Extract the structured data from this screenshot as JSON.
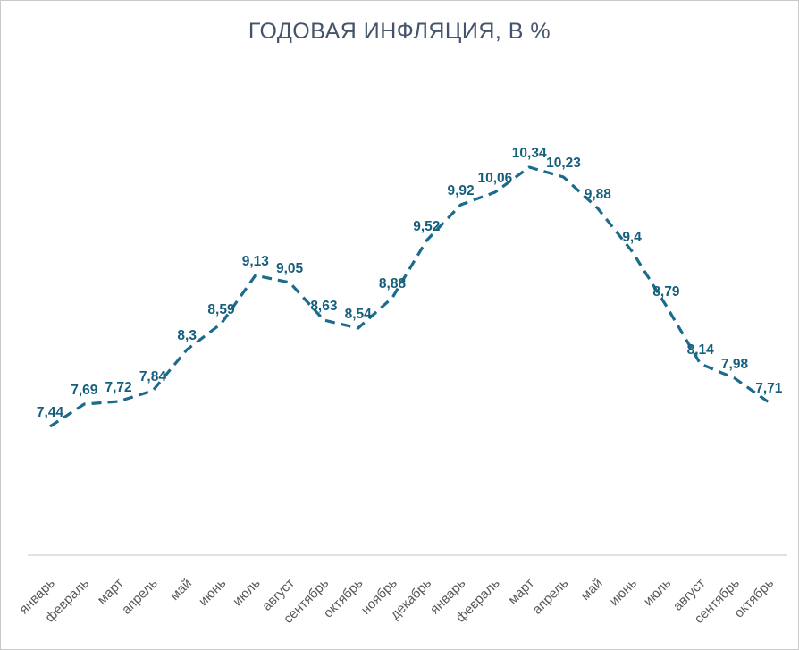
{
  "chart_data": {
    "type": "line",
    "title": "ГОДОВАЯ ИНФЛЯЦИЯ, В %",
    "categories": [
      "январь",
      "февраль",
      "март",
      "апрель",
      "май",
      "июнь",
      "июль",
      "август",
      "сентябрь",
      "октябрь",
      "ноябрь",
      "декабрь",
      "январь",
      "февраль",
      "март",
      "апрель",
      "май",
      "июнь",
      "июль",
      "август",
      "сентябрь",
      "октябрь"
    ],
    "values": [
      7.44,
      7.69,
      7.72,
      7.84,
      8.3,
      8.59,
      9.13,
      9.05,
      8.63,
      8.54,
      8.88,
      9.52,
      9.92,
      10.06,
      10.34,
      10.23,
      9.88,
      9.4,
      8.79,
      8.14,
      7.98,
      7.71
    ],
    "value_labels": [
      "7,44",
      "7,69",
      "7,72",
      "7,84",
      "8,3",
      "8,59",
      "9,13",
      "9,05",
      "8,63",
      "8,54",
      "8,88",
      "9,52",
      "9,92",
      "10,06",
      "10,34",
      "10,23",
      "9,88",
      "9,4",
      "8,79",
      "8,14",
      "7,98",
      "7,71"
    ],
    "xlabel": "",
    "ylabel": "",
    "ylim": [
      6,
      11
    ],
    "grid": false,
    "legend": "none",
    "line_style": "dashed",
    "colors": {
      "line": "#1b6b8c",
      "data_label": "#155f7d",
      "axis_label": "#595959",
      "title": "#44546a",
      "axis_line": "#d9d9d9"
    }
  }
}
